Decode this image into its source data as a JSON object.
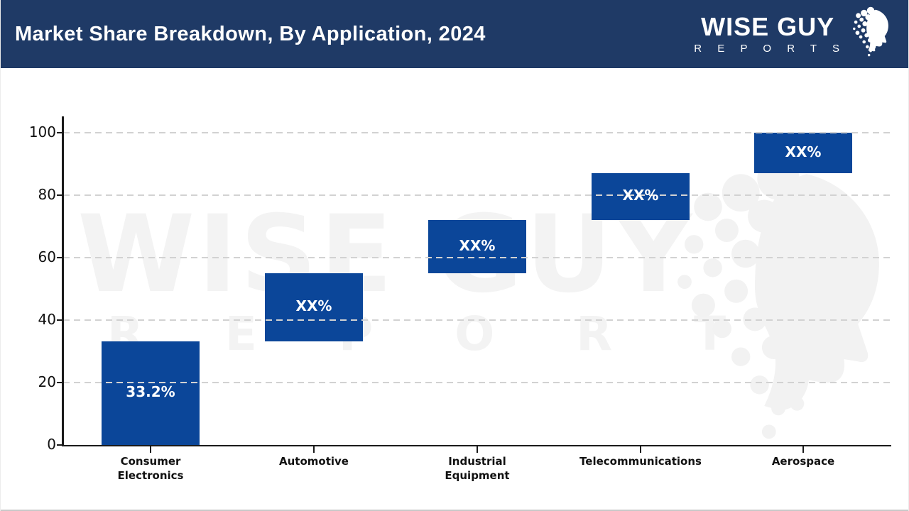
{
  "header": {
    "title": "Market Share Breakdown, By Application, 2024",
    "logo": {
      "wordmark": "WISE GUY",
      "subtext": "R E P O R T S"
    },
    "colors": {
      "header_bg": "#1f3a66",
      "text": "#ffffff"
    }
  },
  "watermark": {
    "line1": "WISE GUY",
    "line2": "R E P O R T S"
  },
  "chart_data": {
    "type": "bar",
    "subtype": "waterfall",
    "title": "Market Share Breakdown, By Application, 2024",
    "categories": [
      "Consumer\nElectronics",
      "Automotive",
      "Industrial\nEquipment",
      "Telecommunications",
      "Aerospace"
    ],
    "segments": [
      {
        "category": "Consumer Electronics",
        "label": "33.2%",
        "start": 0,
        "end": 33.2
      },
      {
        "category": "Automotive",
        "label": "XX%",
        "start": 33.2,
        "end": 55
      },
      {
        "category": "Industrial Equipment",
        "label": "XX%",
        "start": 55,
        "end": 72
      },
      {
        "category": "Telecommunications",
        "label": "XX%",
        "start": 72,
        "end": 87
      },
      {
        "category": "Aerospace",
        "label": "XX%",
        "start": 87,
        "end": 100
      }
    ],
    "ylim": [
      0,
      100
    ],
    "yticks": [
      0,
      20,
      40,
      60,
      80,
      100
    ],
    "grid": "dashed horizontal, drawn over bars",
    "legend": "none",
    "bar_color": "#0b4699",
    "bar_label_color": "#ffffff",
    "axis_color": "#1a1a1a"
  }
}
